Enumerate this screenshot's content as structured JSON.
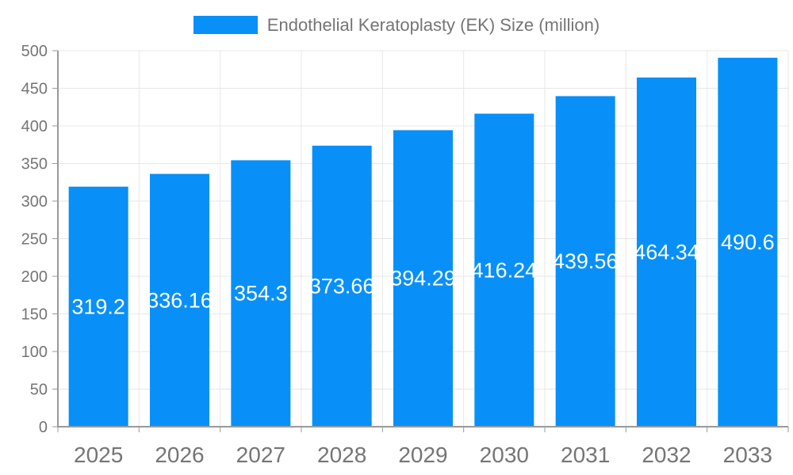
{
  "chart_data": {
    "type": "bar",
    "title": "Endothelial Keratoplasty (EK) Size (million)",
    "xlabel": "",
    "ylabel": "",
    "categories": [
      "2025",
      "2026",
      "2027",
      "2028",
      "2029",
      "2030",
      "2031",
      "2032",
      "2033"
    ],
    "values": [
      319.2,
      336.16,
      354.3,
      373.66,
      394.29,
      416.24,
      439.56,
      464.34,
      490.6
    ],
    "value_labels": [
      "319.2",
      "336.16",
      "354.3",
      "373.66",
      "394.29",
      "416.24",
      "439.56",
      "464.34",
      "490.6"
    ],
    "ylim": [
      0,
      500
    ],
    "ytick_step": 50,
    "ytick_labels": [
      "0",
      "50",
      "100",
      "150",
      "200",
      "250",
      "300",
      "350",
      "400",
      "450",
      "500"
    ],
    "grid": true,
    "legend_position": "top-center",
    "colors": {
      "bar": "#0890f8",
      "grid": "#e7e7e7",
      "axis": "#9a9a9a",
      "tick_label": "#757575",
      "value_label": "#ffffff",
      "legend_text": "#757575",
      "background": "#ffffff"
    }
  }
}
